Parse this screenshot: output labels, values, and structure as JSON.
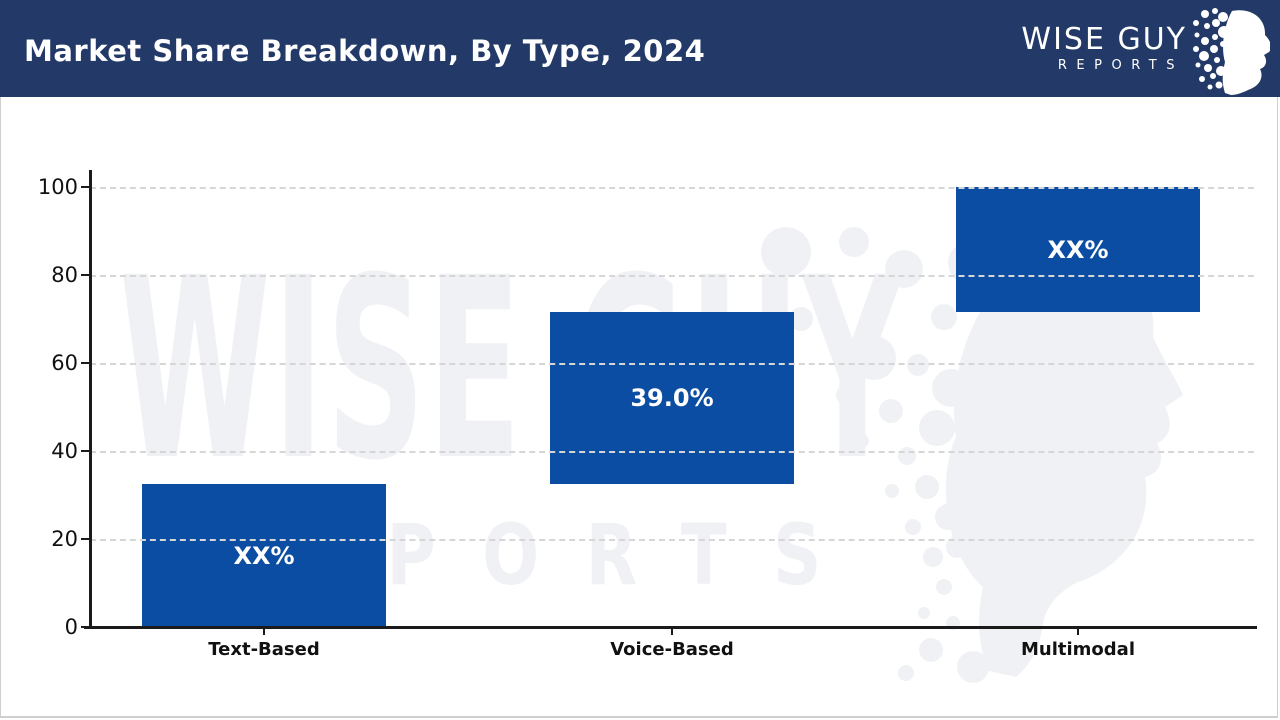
{
  "header": {
    "title": "Market Share Breakdown, By Type, 2024",
    "logo": {
      "wordmark": "WISE GUY",
      "subtext": "REPORTS"
    }
  },
  "watermark": {
    "wordmark": "WISE GUY",
    "subtext": "REPORTS"
  },
  "chart_data": {
    "type": "bar",
    "subtype": "floating-waterfall",
    "title": "Market Share Breakdown, By Type, 2024",
    "categories": [
      "Text-Based",
      "Voice-Based",
      "Multimodal"
    ],
    "segments": [
      [
        0,
        32.5
      ],
      [
        32.5,
        71.5
      ],
      [
        71.5,
        100
      ]
    ],
    "values": [
      32.5,
      39.0,
      28.5
    ],
    "bar_labels": [
      "XX%",
      "39.0%",
      "XX%"
    ],
    "yticks": [
      0,
      20,
      40,
      60,
      80,
      100
    ],
    "ylim": [
      0,
      100
    ],
    "xlabel": "",
    "ylabel": "",
    "grid": "horizontal-dashed",
    "legend": "none",
    "bar_color": "#0B4DA2",
    "bar_label_color": "#FFFFFF"
  },
  "colors": {
    "header_bg": "#233A68",
    "header_text": "#FFFFFF",
    "bar": "#0B4DA2",
    "grid": "#D6D6D6",
    "axis": "#1B1B1B",
    "tick_text": "#111111",
    "watermark": "#F0F1F5",
    "figure_border": "#CFCFCF",
    "background": "#FFFFFF"
  }
}
